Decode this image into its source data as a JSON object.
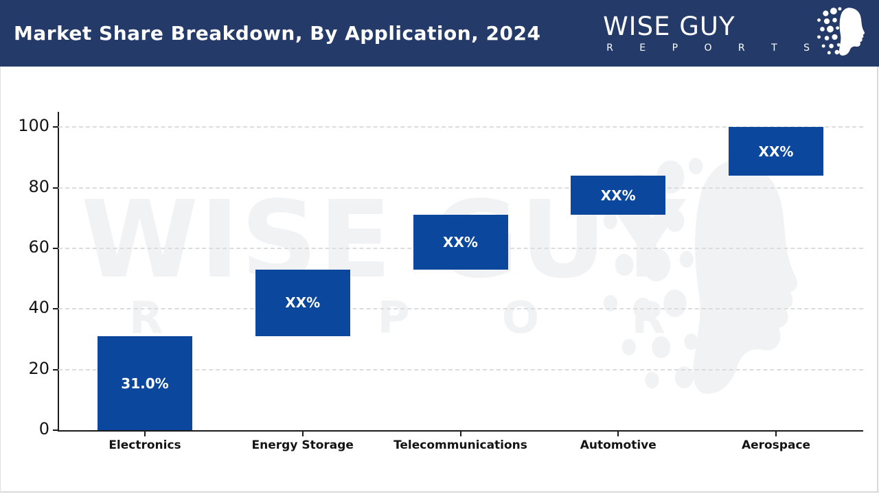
{
  "header": {
    "title": "Market Share Breakdown, By Application, 2024",
    "logo": {
      "name": "WISE GUY",
      "subtitle": "R E P O R T S"
    }
  },
  "watermark": {
    "line1": "WISE GUY",
    "line2": "R E P O R T S"
  },
  "colors": {
    "header_bg": "#243A69",
    "bar_blue": "#0B479D",
    "grid_gray": "#DCDCDC",
    "axis_black": "#1A1A1A",
    "watermark_gray": "#F1F2F4"
  },
  "chart_data": {
    "type": "bar",
    "subtype": "waterfall",
    "title": "Market Share Breakdown, By Application, 2024",
    "xlabel": "",
    "ylabel": "",
    "ylim": [
      0,
      105
    ],
    "grid": "horizontal dashed",
    "legend": "none",
    "yticks": [
      0,
      20,
      40,
      60,
      80,
      100
    ],
    "categories": [
      "Electronics",
      "Energy Storage",
      "Telecommunications",
      "Automotive",
      "Aerospace"
    ],
    "segments": [
      {
        "category": "Electronics",
        "start": 0,
        "end": 31,
        "label": "31.0%"
      },
      {
        "category": "Energy Storage",
        "start": 31,
        "end": 53,
        "label": "XX%"
      },
      {
        "category": "Telecommunications",
        "start": 53,
        "end": 71,
        "label": "XX%"
      },
      {
        "category": "Automotive",
        "start": 71,
        "end": 84,
        "label": "XX%"
      },
      {
        "category": "Aerospace",
        "start": 84,
        "end": 100,
        "label": "XX%"
      }
    ],
    "bar_color": "#0B479D",
    "bar_label_color": "#FFFFFF"
  }
}
